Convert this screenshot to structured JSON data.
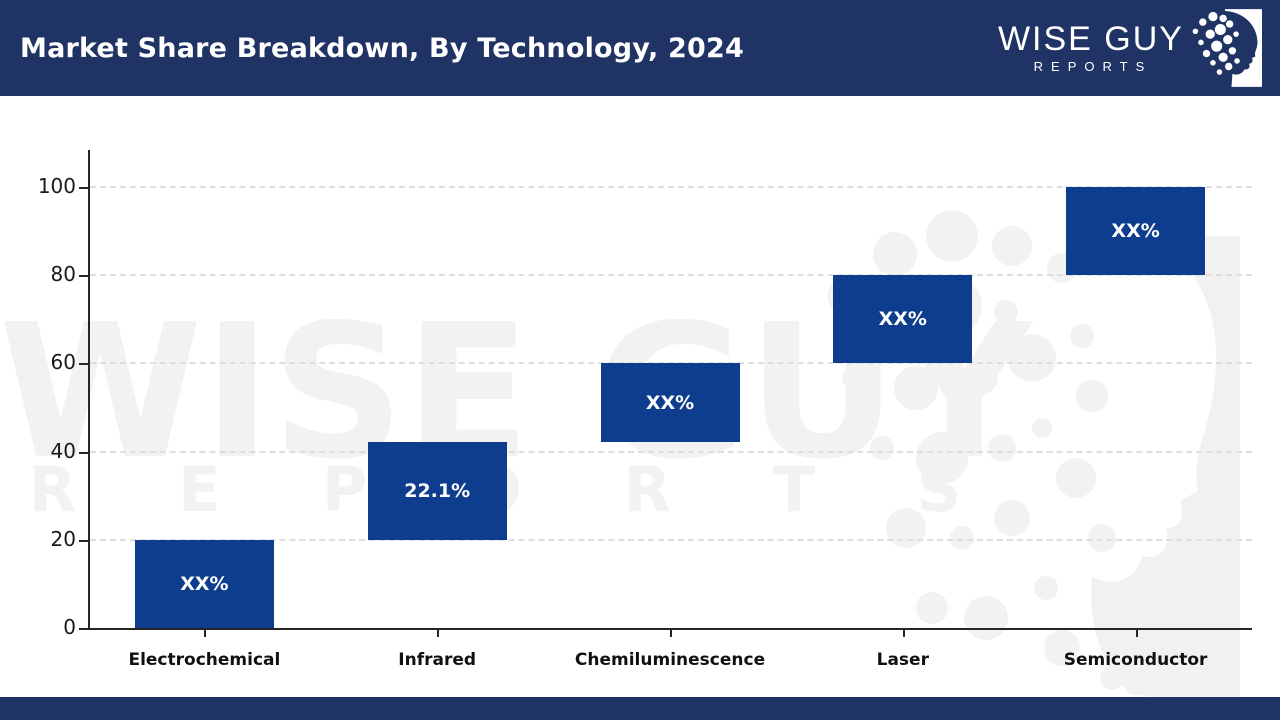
{
  "header": {
    "title": "Market Share Breakdown, By Technology, 2024",
    "logo": {
      "line1": "WISE GUY",
      "line2": "REPORTS"
    }
  },
  "watermark": {
    "line1": "WISE GUY",
    "line2": "R E P O R T S"
  },
  "colors": {
    "header_bg": "#1f3464",
    "footer_bg": "#1f3464",
    "bar": "#0d3d8c",
    "grid": "#dedede",
    "watermark": "#f2f2f2",
    "axis": "#262626"
  },
  "chart_data": {
    "type": "bar",
    "subtype": "waterfall-floating",
    "title": "Market Share Breakdown, By Technology, 2024",
    "categories": [
      "Electrochemical",
      "Infrared",
      "Chemiluminescence",
      "Laser",
      "Semiconductor"
    ],
    "series": [
      {
        "name": "Market Share %",
        "segments": [
          {
            "category": "Electrochemical",
            "start": 0,
            "end": 20,
            "label": "XX%"
          },
          {
            "category": "Infrared",
            "start": 20,
            "end": 42.1,
            "label": "22.1%"
          },
          {
            "category": "Chemiluminescence",
            "start": 42.1,
            "end": 60,
            "label": "XX%"
          },
          {
            "category": "Laser",
            "start": 60,
            "end": 80,
            "label": "XX%"
          },
          {
            "category": "Semiconductor",
            "start": 80,
            "end": 100,
            "label": "XX%"
          }
        ]
      }
    ],
    "xlabel": "",
    "ylabel": "",
    "ylim": [
      0,
      108
    ],
    "yticks": [
      0,
      20,
      40,
      60,
      80,
      100
    ],
    "grid": "horizontal-dashed",
    "legend": "none"
  }
}
